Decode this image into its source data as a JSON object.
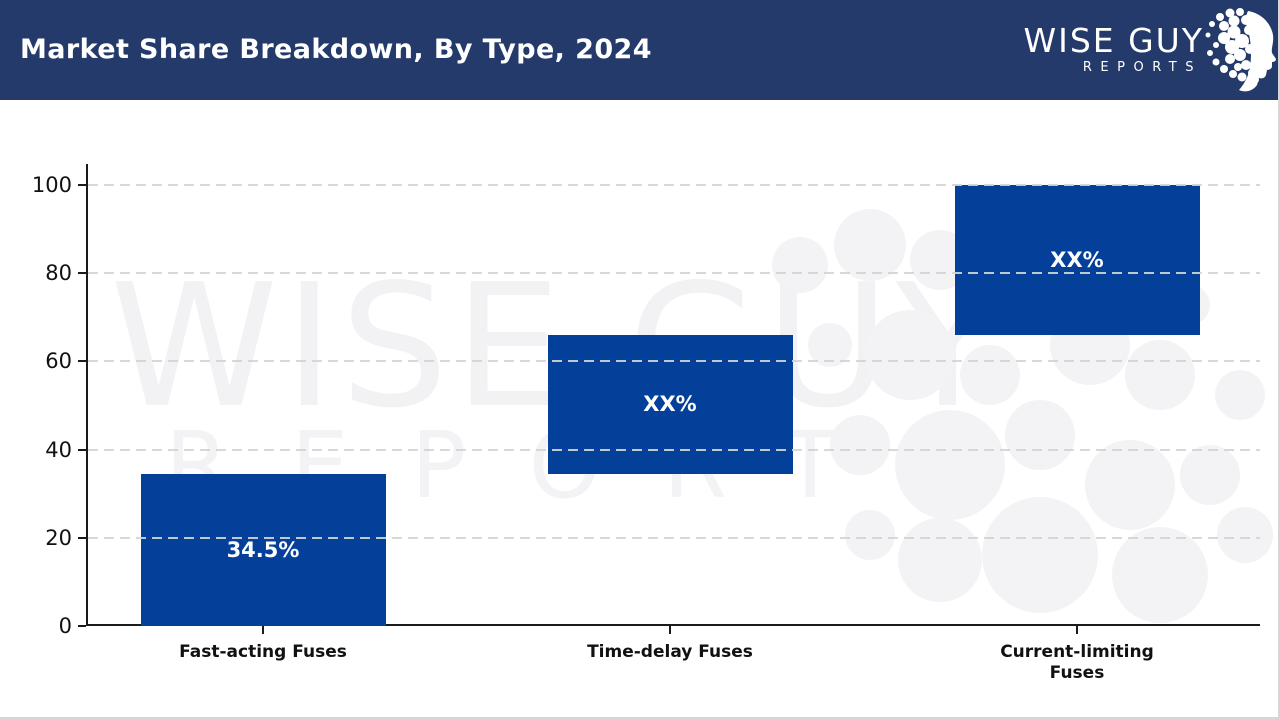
{
  "header": {
    "title": "Market Share Breakdown, By Type, 2024",
    "logo": {
      "line1": "WISE GUY",
      "line2": "REPORTS"
    }
  },
  "watermark": {
    "line1": "WISE GUY",
    "line2": "REPORTS"
  },
  "chart_data": {
    "type": "bar",
    "subtype": "floating-waterfall",
    "title": "Market Share Breakdown, By Type, 2024",
    "categories": [
      "Fast-acting Fuses",
      "Time-delay Fuses",
      "Current-limiting Fuses"
    ],
    "series": [
      {
        "name": "Market share (%)",
        "segments": [
          {
            "category": "Fast-acting Fuses",
            "from": 0,
            "to": 34.5,
            "label": "34.5%"
          },
          {
            "category": "Time-delay Fuses",
            "from": 34.5,
            "to": 66,
            "label": "XX%"
          },
          {
            "category": "Current-limiting Fuses",
            "from": 66,
            "to": 100,
            "label": "XX%"
          }
        ]
      }
    ],
    "ylim": [
      0,
      100
    ],
    "yticks": [
      0,
      20,
      40,
      60,
      80,
      100
    ],
    "grid": "dashed-horizontal",
    "legend": "none",
    "bar_color": "#04409a",
    "grid_color": "#d4d4d4"
  },
  "colors": {
    "header_bg": "#243a6b",
    "bar": "#04409a",
    "grid": "#d4d4d4",
    "axis": "#1a1a1a",
    "watermark": "#f2f2f4",
    "page_border": "#d6d6d6"
  }
}
